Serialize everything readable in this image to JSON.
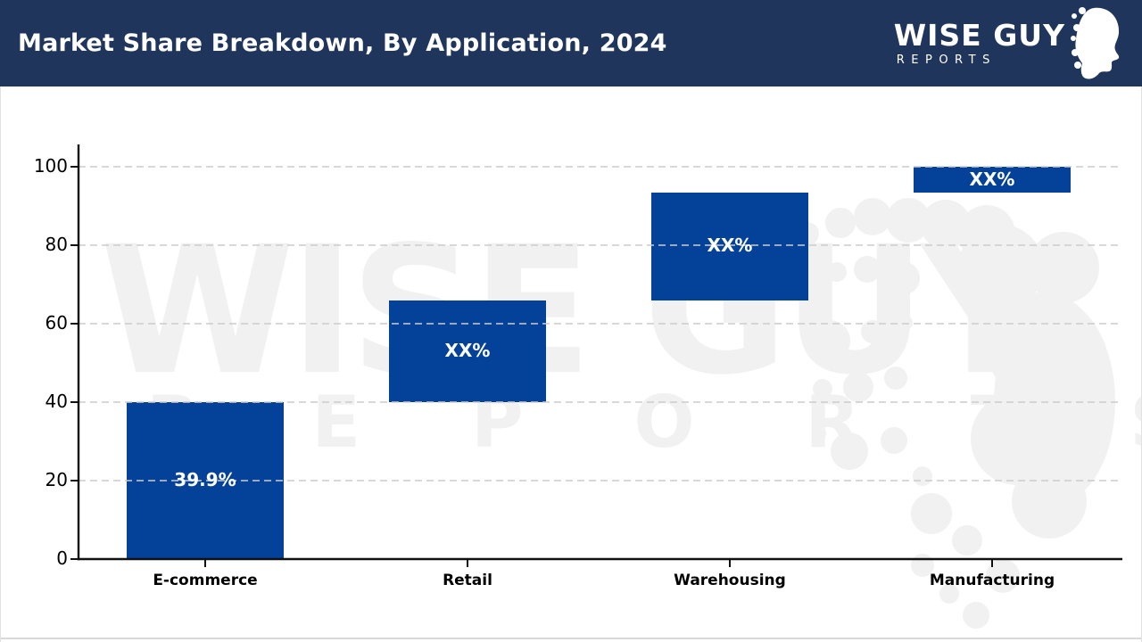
{
  "header": {
    "title": "Market Share Breakdown, By Application, 2024",
    "logo": {
      "line1": "WISE GUY",
      "line2": "REPORTS"
    }
  },
  "watermark": {
    "line1": "WISE GUY",
    "line2": "R E P O R T S"
  },
  "chart_data": {
    "type": "bar",
    "subtype": "waterfall",
    "title": "Market Share Breakdown, By Application, 2024",
    "categories": [
      "E-commerce",
      "Retail",
      "Warehousing",
      "Manufacturing"
    ],
    "bars": [
      {
        "category": "E-commerce",
        "start": 0,
        "end": 39.9,
        "label": "39.9%"
      },
      {
        "category": "Retail",
        "start": 39.9,
        "end": 66.0,
        "label": "XX%"
      },
      {
        "category": "Warehousing",
        "start": 66.0,
        "end": 93.4,
        "label": "XX%"
      },
      {
        "category": "Manufacturing",
        "start": 93.4,
        "end": 100.0,
        "label": "XX%"
      }
    ],
    "ylim": [
      0,
      100
    ],
    "yticks": [
      0,
      20,
      40,
      60,
      80,
      100
    ],
    "xlabel": "",
    "ylabel": "",
    "grid": "horizontal-dashed",
    "legend": "none",
    "colors": {
      "bar": "#04429a",
      "bar_label": "#ffffff",
      "axis": "#111111",
      "grid": "#cccccc",
      "header_bg": "#20355c",
      "watermark": "#f1f1f1"
    }
  }
}
